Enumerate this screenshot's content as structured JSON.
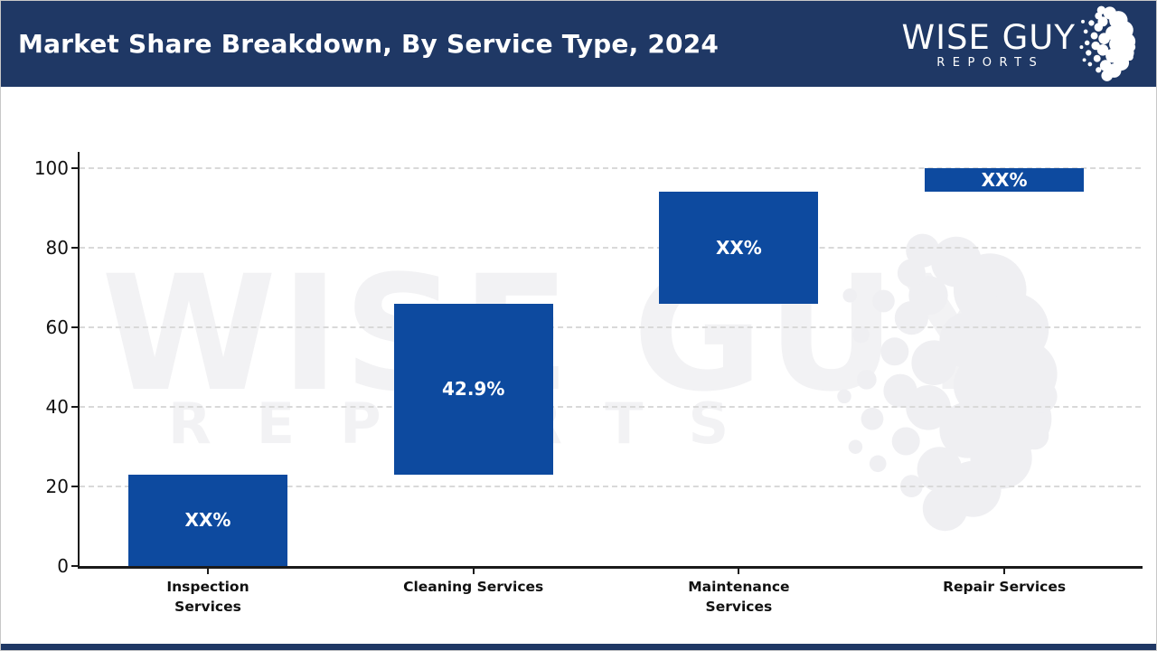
{
  "header": {
    "title": "Market Share Breakdown, By Service Type, 2024",
    "logo": {
      "line1": "WISE GUY",
      "line2": "REPORTS"
    }
  },
  "watermark": {
    "line1": "WISE GUY",
    "line2": "REPORTS"
  },
  "footer": {},
  "colors": {
    "header_navy": "#1f3865",
    "bar_blue": "#0d4a9f",
    "gridline_gray": "#d9d9d9",
    "watermark_gray": "#f2f2f4"
  },
  "chart_data": {
    "type": "bar",
    "subtype": "floating-segment-waterfall",
    "title": "Market Share Breakdown, By Service Type, 2024",
    "categories": [
      "Inspection Services",
      "Cleaning Services",
      "Maintenance Services",
      "Repair Services"
    ],
    "bars": [
      {
        "category": "Inspection Services",
        "from": 0,
        "to": 23,
        "label": "XX%",
        "tick_label": "Inspection\nServices"
      },
      {
        "category": "Cleaning Services",
        "from": 23,
        "to": 66,
        "label": "42.9%",
        "tick_label": "Cleaning Services"
      },
      {
        "category": "Maintenance Services",
        "from": 66,
        "to": 94,
        "label": "XX%",
        "tick_label": "Maintenance\nServices"
      },
      {
        "category": "Repair Services",
        "from": 94,
        "to": 100,
        "label": "XX%",
        "tick_label": "Repair Services"
      }
    ],
    "yticks": [
      0,
      20,
      40,
      60,
      80,
      100
    ],
    "ylim": [
      0,
      104
    ],
    "xlabel": "",
    "ylabel": "",
    "grid": "horizontal-dashed",
    "legend": "none",
    "bar_color": "#0d4a9f",
    "bar_label_color": "#ffffff"
  }
}
